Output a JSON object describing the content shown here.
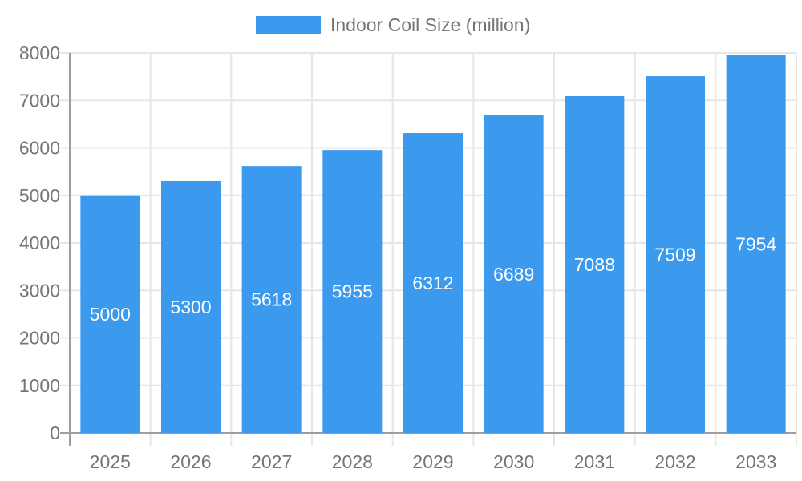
{
  "legend": {
    "label": "Indoor Coil Size (million)",
    "swatch_color": "#3B99EE"
  },
  "chart_data": {
    "type": "bar",
    "title": "",
    "xlabel": "",
    "ylabel": "",
    "series_name": "Indoor Coil Size (million)",
    "categories": [
      "2025",
      "2026",
      "2027",
      "2028",
      "2029",
      "2030",
      "2031",
      "2032",
      "2033"
    ],
    "values": [
      5000,
      5300,
      5618,
      5955,
      6312,
      6689,
      7088,
      7509,
      7954
    ],
    "ylim": [
      0,
      8000
    ],
    "yticks": [
      0,
      1000,
      2000,
      3000,
      4000,
      5000,
      6000,
      7000,
      8000
    ],
    "grid": true,
    "legend_position": "top",
    "value_labels": "inside-center",
    "colors": {
      "bar": "#3B99EE",
      "value_label": "#FFFFFF",
      "axis_text": "#757575",
      "grid_line": "#E6E6E6",
      "axis_line": "#9E9E9E"
    }
  }
}
